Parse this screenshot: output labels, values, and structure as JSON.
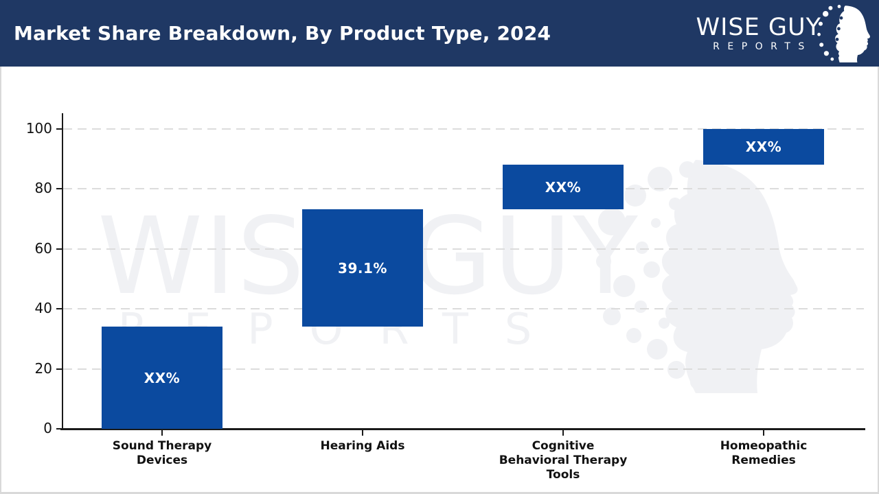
{
  "header": {
    "title": "Market Share Breakdown, By Product Type, 2024",
    "logo": {
      "primary": "WISE GUY",
      "secondary": "REPORTS"
    }
  },
  "watermark": {
    "primary": "WISE GUY",
    "secondary": "REPORTS"
  },
  "chart_data": {
    "type": "bar",
    "subtype": "floating-segment-waterfall",
    "title": "Market Share Breakdown, By Product Type, 2024",
    "categories": [
      "Sound Therapy\nDevices",
      "Hearing Aids",
      "Cognitive\nBehavioral Therapy\nTools",
      "Homeopathic\nRemedies"
    ],
    "bars": [
      {
        "category": "Sound Therapy Devices",
        "start": 0,
        "end": 34,
        "value_label": "XX%"
      },
      {
        "category": "Hearing Aids",
        "start": 34,
        "end": 73.1,
        "value_label": "39.1%"
      },
      {
        "category": "Cognitive Behavioral Therapy Tools",
        "start": 73.1,
        "end": 87.9,
        "value_label": "XX%"
      },
      {
        "category": "Homeopathic Remedies",
        "start": 87.9,
        "end": 100,
        "value_label": "XX%"
      }
    ],
    "xlabel": "",
    "ylabel": "",
    "yticks": [
      0,
      20,
      40,
      60,
      80,
      100
    ],
    "ylim": [
      0,
      104
    ],
    "grid": "horizontal-dashed",
    "legend": "none",
    "colors": {
      "bar": "#0b4a9f",
      "bar_label": "#ffffff",
      "axis": "#1a1a1a",
      "gridline": "#dcdcdc",
      "header_bg": "#1f3864",
      "watermark": "#f0f1f4"
    }
  }
}
